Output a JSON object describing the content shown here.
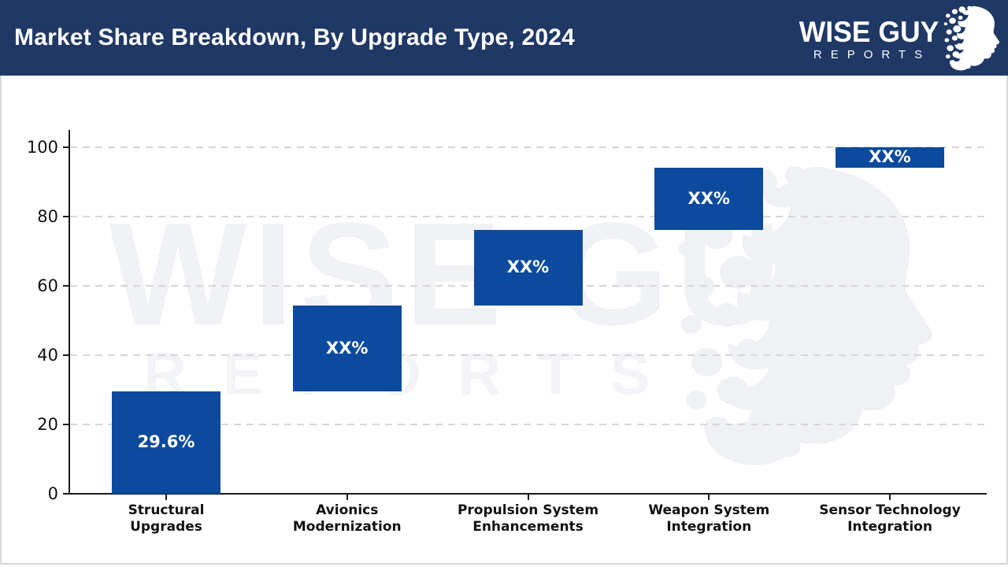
{
  "header": {
    "title": "Market Share Breakdown, By Upgrade Type, 2024",
    "bg_color": "#1f3865",
    "logo": {
      "name": "WISE GUY",
      "subtext": "REPORTS"
    }
  },
  "watermark": {
    "line1": "WISE GUY",
    "line2": "REPORTS"
  },
  "chart_data": {
    "type": "bar",
    "subtype": "waterfall",
    "title": "Market Share Breakdown, By Upgrade Type, 2024",
    "categories": [
      "Structural Upgrades",
      "Avionics Modernization",
      "Propulsion System Enhancements",
      "Weapon System Integration",
      "Sensor Technology Integration"
    ],
    "category_lines": [
      [
        "Structural",
        "Upgrades"
      ],
      [
        "Avionics",
        "Modernization"
      ],
      [
        "Propulsion System",
        "Enhancements"
      ],
      [
        "Weapon System",
        "Integration"
      ],
      [
        "Sensor Technology",
        "Integration"
      ]
    ],
    "bars": [
      {
        "category": "Structural Upgrades",
        "label": "29.6%",
        "start": 0,
        "end": 29.6
      },
      {
        "category": "Avionics Modernization",
        "label": "XX%",
        "start": 29.6,
        "end": 54.4
      },
      {
        "category": "Propulsion System Enhancements",
        "label": "XX%",
        "start": 54.4,
        "end": 76.2
      },
      {
        "category": "Weapon System Integration",
        "label": "XX%",
        "start": 76.2,
        "end": 94.2
      },
      {
        "category": "Sensor Technology Integration",
        "label": "XX%",
        "start": 94.2,
        "end": 100
      }
    ],
    "yticks": [
      0,
      20,
      40,
      60,
      80,
      100
    ],
    "ylim": [
      0,
      105
    ],
    "xlabel": "",
    "ylabel": "",
    "bar_color": "#0c4a9e",
    "grid": "horizontal-dashed",
    "gridline_color": "#d6d6d6",
    "legend": null
  }
}
